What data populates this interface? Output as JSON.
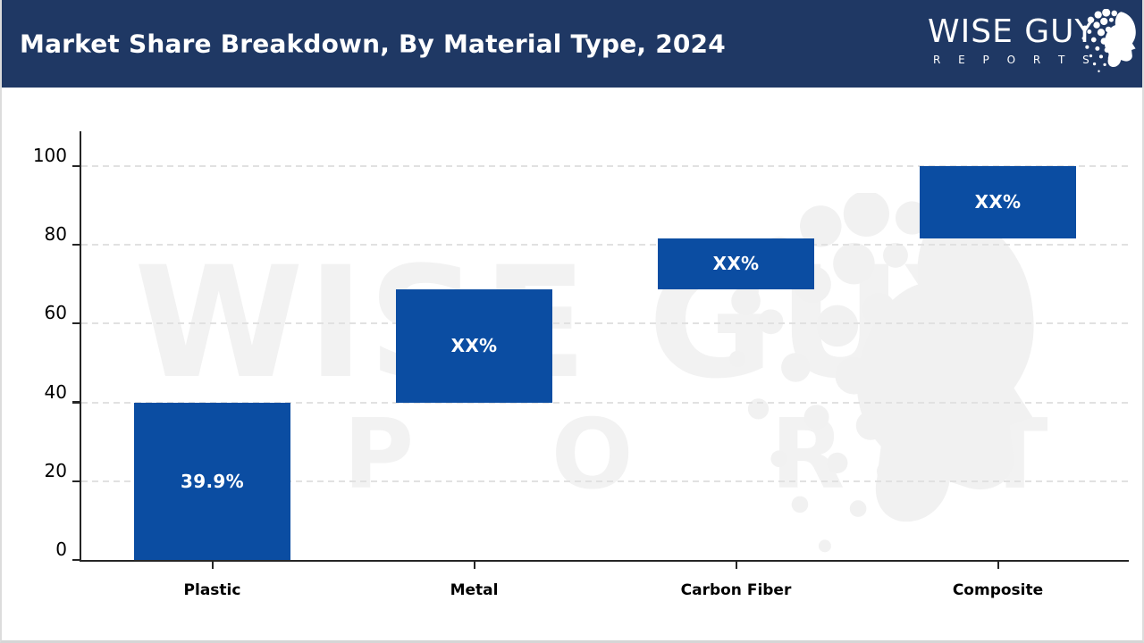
{
  "header": {
    "title": "Market Share Breakdown, By Material Type, 2024",
    "logo": {
      "line1": "WISE GUY",
      "line2": "R E P O R T S"
    }
  },
  "watermark": {
    "line1": "WISE GUY",
    "line2": "P O R T S"
  },
  "colors": {
    "header_bg": "#1F3864",
    "bar": "#0B4DA2",
    "grid": "#e1e1e1",
    "axis": "#262626",
    "bar_label": "#ffffff",
    "watermark": "#f2f2f2"
  },
  "chart_data": {
    "type": "bar",
    "subtype": "waterfall",
    "title": "Market Share Breakdown, By Material Type, 2024",
    "categories": [
      "Plastic",
      "Metal",
      "Carbon Fiber",
      "Composite"
    ],
    "bars": [
      {
        "label": "Plastic",
        "start": 0,
        "end": 39.9,
        "value": 39.9,
        "value_label": "39.9%"
      },
      {
        "label": "Metal",
        "start": 39.9,
        "end": 68.8,
        "value": 28.9,
        "value_label": "XX%"
      },
      {
        "label": "Carbon Fiber",
        "start": 68.8,
        "end": 81.6,
        "value": 12.8,
        "value_label": "XX%"
      },
      {
        "label": "Composite",
        "start": 81.6,
        "end": 100,
        "value": 18.4,
        "value_label": "XX%"
      }
    ],
    "yticks": [
      0,
      20,
      40,
      60,
      80,
      100
    ],
    "ylim": [
      0,
      107
    ],
    "xlabel": "",
    "ylabel": "",
    "grid": "horizontal-dashed",
    "legend": "none",
    "bar_width_fraction": 0.6
  }
}
